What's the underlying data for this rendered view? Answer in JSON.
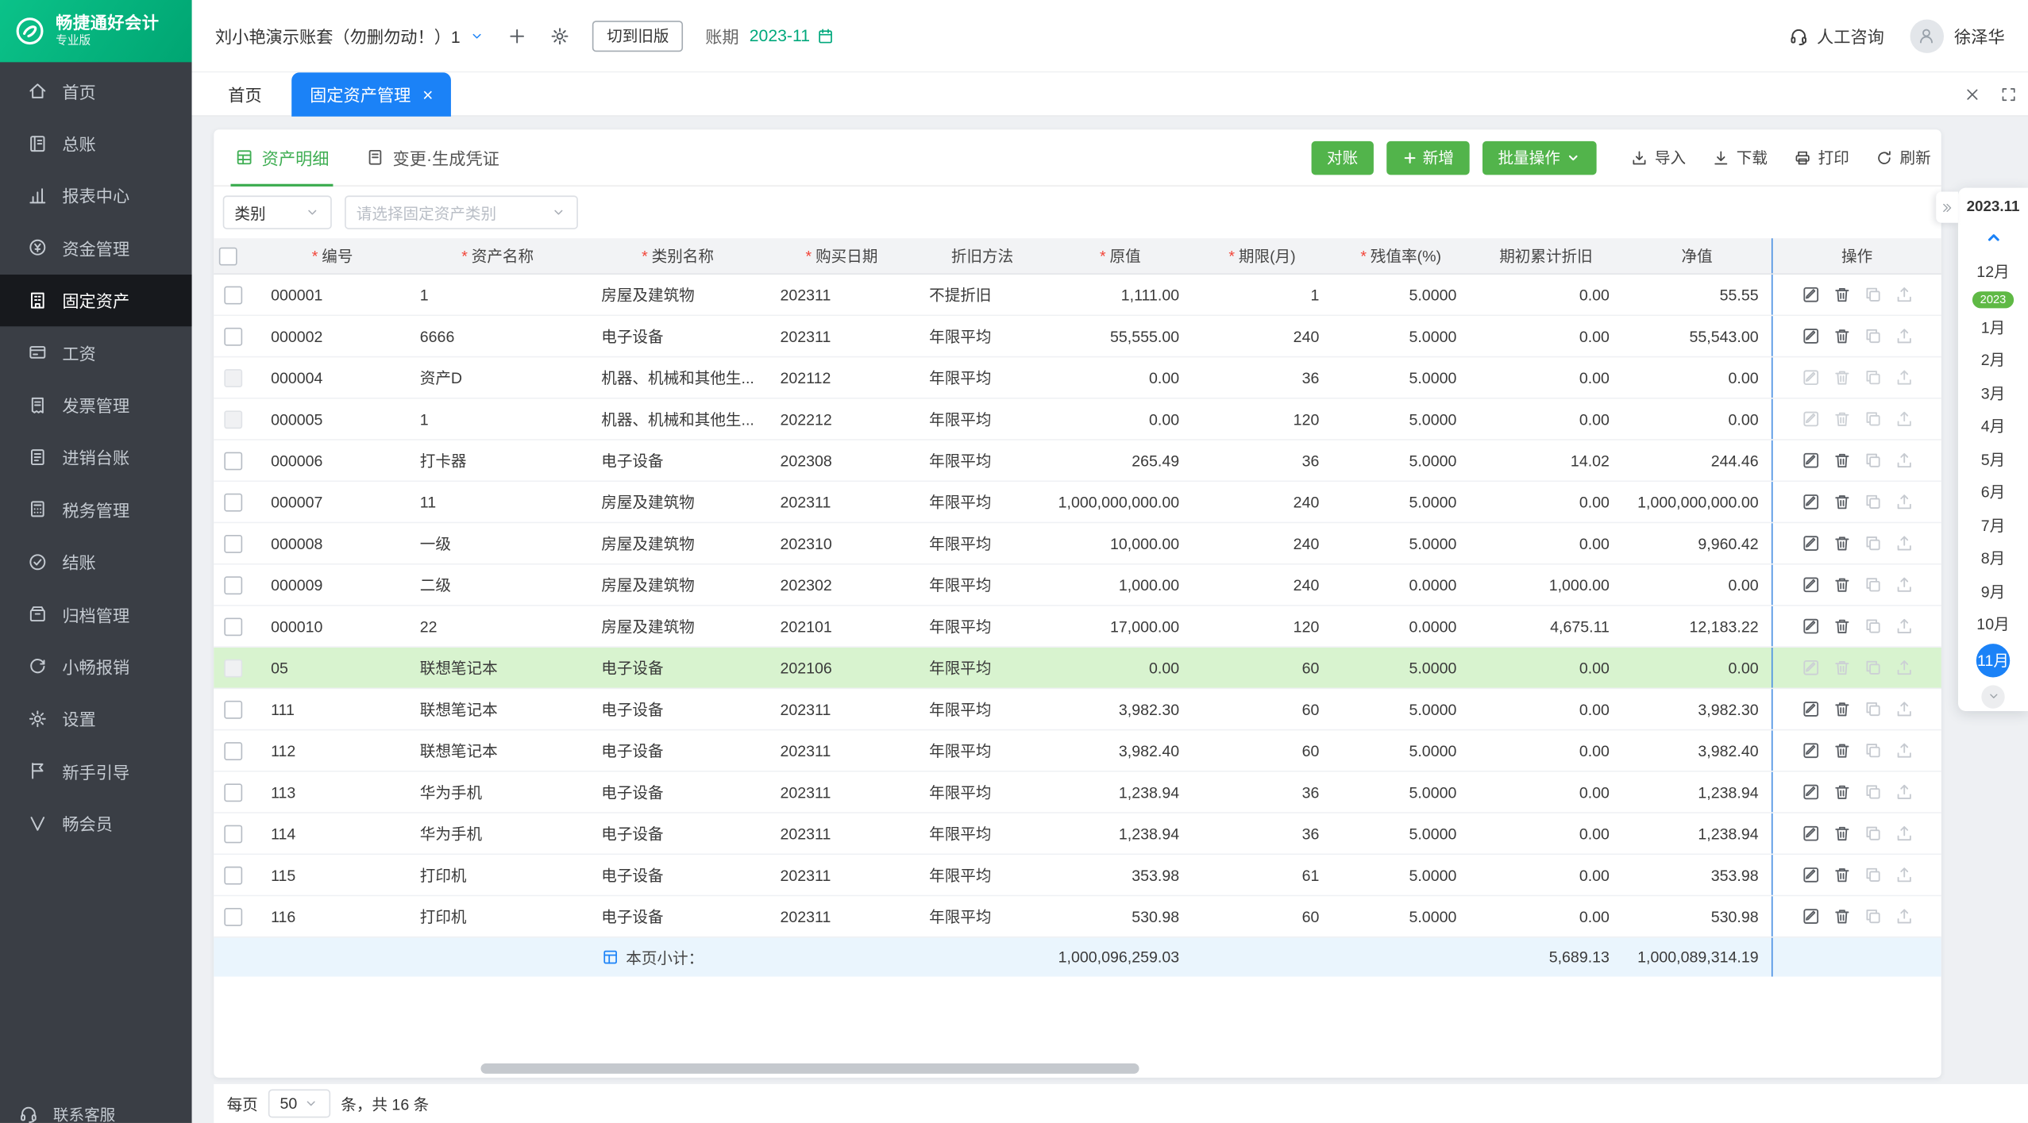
{
  "brand": {
    "logo_title": "畅捷通好会计",
    "logo_subtitle": "专业版"
  },
  "sidebar": {
    "items": [
      {
        "id": "home",
        "label": "首页",
        "icon": "home-icon",
        "active": false
      },
      {
        "id": "general-ledger",
        "label": "总账",
        "icon": "book-icon",
        "active": false
      },
      {
        "id": "report-center",
        "label": "报表中心",
        "icon": "chart-icon",
        "active": false
      },
      {
        "id": "funds",
        "label": "资金管理",
        "icon": "coin-icon",
        "active": false
      },
      {
        "id": "fixed-assets",
        "label": "固定资产",
        "icon": "building-icon",
        "active": true
      },
      {
        "id": "salary",
        "label": "工资",
        "icon": "card-icon",
        "active": false
      },
      {
        "id": "invoice",
        "label": "发票管理",
        "icon": "receipt-icon",
        "active": false
      },
      {
        "id": "purchase-sales",
        "label": "进销台账",
        "icon": "doc-icon",
        "active": false
      },
      {
        "id": "tax",
        "label": "税务管理",
        "icon": "calculator-icon",
        "active": false
      },
      {
        "id": "closing",
        "label": "结账",
        "icon": "check-circle-icon",
        "active": false
      },
      {
        "id": "archive",
        "label": "归档管理",
        "icon": "archive-icon",
        "active": false
      },
      {
        "id": "expense",
        "label": "小畅报销",
        "icon": "round-arrow-icon",
        "active": false
      },
      {
        "id": "settings",
        "label": "设置",
        "icon": "gear-icon",
        "active": false
      },
      {
        "id": "guide",
        "label": "新手引导",
        "icon": "flag-icon",
        "active": false
      },
      {
        "id": "member",
        "label": "畅会员",
        "icon": "vip-icon",
        "active": false
      }
    ],
    "footer_label": "联系客服"
  },
  "topbar": {
    "account_set": "刘小艳演示账套（勿删勿动！）1",
    "switch_view_button": "切到旧版",
    "period_label": "账期",
    "period_value": "2023-11",
    "consult_label": "人工咨询",
    "user_name": "徐泽华"
  },
  "tabbar": {
    "tabs": [
      {
        "id": "home",
        "label": "首页",
        "active": false
      },
      {
        "id": "fixed-assets",
        "label": "固定资产管理",
        "active": true,
        "closable": true
      }
    ]
  },
  "content": {
    "view_tabs": [
      {
        "label": "资产明细",
        "active": true
      },
      {
        "label": "变更·生成凭证",
        "active": false
      }
    ],
    "actions": {
      "reconcile": "对账",
      "add": "新增",
      "batch": "批量操作",
      "import": "导入",
      "download": "下载",
      "print": "打印",
      "refresh": "刷新"
    },
    "filters": {
      "category_label": "类别",
      "category_placeholder": "请选择固定资产类别"
    },
    "table": {
      "columns": [
        {
          "key": "code",
          "label": "编号",
          "required": true
        },
        {
          "key": "name",
          "label": "资产名称",
          "required": true
        },
        {
          "key": "category",
          "label": "类别名称",
          "required": true
        },
        {
          "key": "buy_date",
          "label": "购买日期",
          "required": true
        },
        {
          "key": "method",
          "label": "折旧方法",
          "required": false
        },
        {
          "key": "original",
          "label": "原值",
          "required": true
        },
        {
          "key": "months",
          "label": "期限(月)",
          "required": true
        },
        {
          "key": "residual",
          "label": "残值率(%)",
          "required": true
        },
        {
          "key": "init_dep",
          "label": "期初累计折旧",
          "required": false
        },
        {
          "key": "net",
          "label": "净值",
          "required": false
        },
        {
          "key": "ops",
          "label": "操作",
          "required": false
        }
      ],
      "rows": [
        {
          "code": "000001",
          "name": "1",
          "category": "房屋及建筑物",
          "buy_date": "202311",
          "method": "不提折旧",
          "original": "1,111.00",
          "months": "1",
          "residual": "5.0000",
          "init_dep": "0.00",
          "net": "55.55"
        },
        {
          "code": "000002",
          "name": "6666",
          "category": "电子设备",
          "buy_date": "202311",
          "method": "年限平均",
          "original": "55,555.00",
          "months": "240",
          "residual": "5.0000",
          "init_dep": "0.00",
          "net": "55,543.00"
        },
        {
          "code": "000004",
          "name": "资产D",
          "category": "机器、机械和其他生...",
          "buy_date": "202112",
          "method": "年限平均",
          "original": "0.00",
          "months": "36",
          "residual": "5.0000",
          "init_dep": "0.00",
          "net": "0.00",
          "disabled": true
        },
        {
          "code": "000005",
          "name": "1",
          "category": "机器、机械和其他生...",
          "buy_date": "202212",
          "method": "年限平均",
          "original": "0.00",
          "months": "120",
          "residual": "5.0000",
          "init_dep": "0.00",
          "net": "0.00",
          "disabled": true
        },
        {
          "code": "000006",
          "name": "打卡器",
          "category": "电子设备",
          "buy_date": "202308",
          "method": "年限平均",
          "original": "265.49",
          "months": "36",
          "residual": "5.0000",
          "init_dep": "14.02",
          "net": "244.46"
        },
        {
          "code": "000007",
          "name": "11",
          "category": "房屋及建筑物",
          "buy_date": "202311",
          "method": "年限平均",
          "original": "1,000,000,000.00",
          "months": "240",
          "residual": "5.0000",
          "init_dep": "0.00",
          "net": "1,000,000,000.00"
        },
        {
          "code": "000008",
          "name": "一级",
          "category": "房屋及建筑物",
          "buy_date": "202310",
          "method": "年限平均",
          "original": "10,000.00",
          "months": "240",
          "residual": "5.0000",
          "init_dep": "0.00",
          "net": "9,960.42"
        },
        {
          "code": "000009",
          "name": "二级",
          "category": "房屋及建筑物",
          "buy_date": "202302",
          "method": "年限平均",
          "original": "1,000.00",
          "months": "240",
          "residual": "0.0000",
          "init_dep": "1,000.00",
          "net": "0.00"
        },
        {
          "code": "000010",
          "name": "22",
          "category": "房屋及建筑物",
          "buy_date": "202101",
          "method": "年限平均",
          "original": "17,000.00",
          "months": "120",
          "residual": "0.0000",
          "init_dep": "4,675.11",
          "net": "12,183.22"
        },
        {
          "code": "05",
          "name": "联想笔记本",
          "category": "电子设备",
          "buy_date": "202106",
          "method": "年限平均",
          "original": "0.00",
          "months": "60",
          "residual": "5.0000",
          "init_dep": "0.00",
          "net": "0.00",
          "disabled": true,
          "highlight": true
        },
        {
          "code": "111",
          "name": "联想笔记本",
          "category": "电子设备",
          "buy_date": "202311",
          "method": "年限平均",
          "original": "3,982.30",
          "months": "60",
          "residual": "5.0000",
          "init_dep": "0.00",
          "net": "3,982.30"
        },
        {
          "code": "112",
          "name": "联想笔记本",
          "category": "电子设备",
          "buy_date": "202311",
          "method": "年限平均",
          "original": "3,982.40",
          "months": "60",
          "residual": "5.0000",
          "init_dep": "0.00",
          "net": "3,982.40"
        },
        {
          "code": "113",
          "name": "华为手机",
          "category": "电子设备",
          "buy_date": "202311",
          "method": "年限平均",
          "original": "1,238.94",
          "months": "36",
          "residual": "5.0000",
          "init_dep": "0.00",
          "net": "1,238.94"
        },
        {
          "code": "114",
          "name": "华为手机",
          "category": "电子设备",
          "buy_date": "202311",
          "method": "年限平均",
          "original": "1,238.94",
          "months": "36",
          "residual": "5.0000",
          "init_dep": "0.00",
          "net": "1,238.94"
        },
        {
          "code": "115",
          "name": "打印机",
          "category": "电子设备",
          "buy_date": "202311",
          "method": "年限平均",
          "original": "353.98",
          "months": "61",
          "residual": "5.0000",
          "init_dep": "0.00",
          "net": "353.98"
        },
        {
          "code": "116",
          "name": "打印机",
          "category": "电子设备",
          "buy_date": "202311",
          "method": "年限平均",
          "original": "530.98",
          "months": "60",
          "residual": "5.0000",
          "init_dep": "0.00",
          "net": "530.98"
        }
      ],
      "subtotal": {
        "label": "本页小计：",
        "original": "1,000,096,259.03",
        "init_dep": "5,689.13",
        "net": "1,000,089,314.19"
      }
    },
    "pagination": {
      "per_page_label": "每页",
      "per_page_value": "50",
      "suffix": "条，共 16 条"
    }
  },
  "calendar": {
    "header": "2023.11",
    "items": [
      {
        "label": "12月"
      },
      {
        "label": "2023",
        "type": "year"
      },
      {
        "label": "1月"
      },
      {
        "label": "2月"
      },
      {
        "label": "3月"
      },
      {
        "label": "4月"
      },
      {
        "label": "5月"
      },
      {
        "label": "6月"
      },
      {
        "label": "7月"
      },
      {
        "label": "8月"
      },
      {
        "label": "9月"
      },
      {
        "label": "10月"
      },
      {
        "label": "11月",
        "active": true
      }
    ]
  }
}
